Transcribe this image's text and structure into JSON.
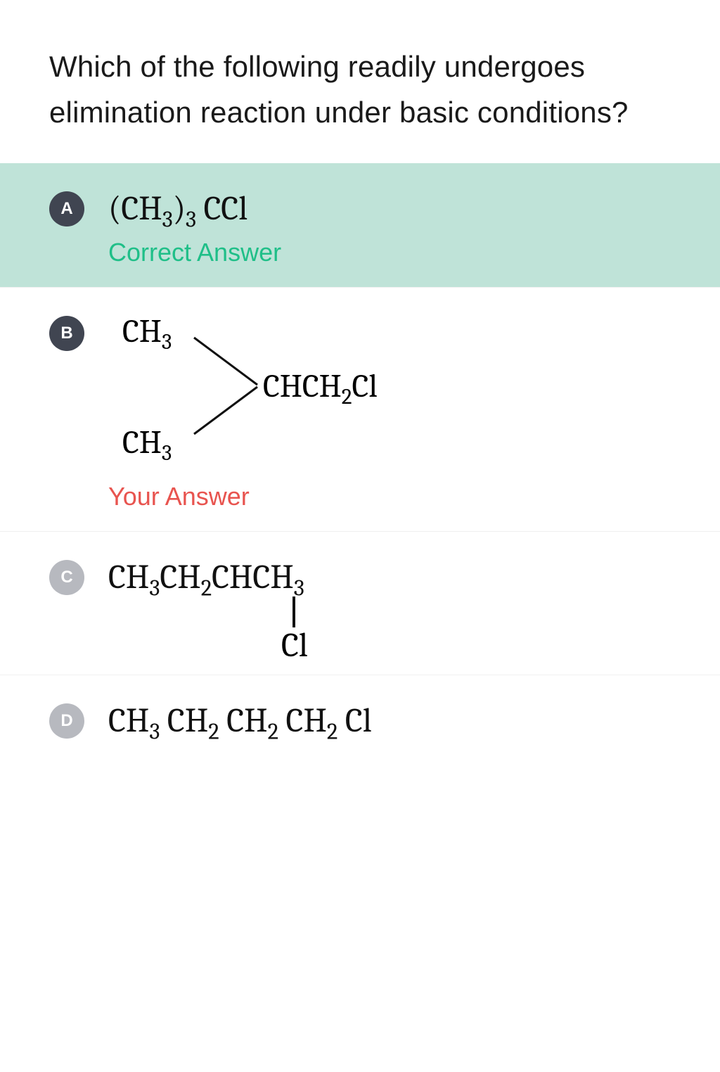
{
  "question": {
    "text": "Which of the following readily undergoes elimination reaction under basic conditions?",
    "font_size_pt": 32,
    "color": "#1a1a1a"
  },
  "status_labels": {
    "correct": "Correct Answer",
    "your": "Your Answer"
  },
  "badge_colors": {
    "selected": "#404551",
    "muted": "#b7b9bf"
  },
  "options": {
    "A": {
      "letter": "A",
      "formula_html": "(CH<sub>3</sub>)<sub>3</sub> CCl",
      "is_correct": true,
      "is_user_answer": false,
      "badge_color": "#404551",
      "row_bg": "#bfe3d8"
    },
    "B": {
      "letter": "B",
      "ch3_top": "CH<sub>3</sub>",
      "ch3_bot": "CH<sub>3</sub>",
      "tail": "CHCH<sub>2</sub>Cl",
      "is_correct": false,
      "is_user_answer": true,
      "badge_color": "#404551",
      "row_bg": "#ffffff",
      "bond_stroke": "#111111",
      "bond_width": 3
    },
    "C": {
      "letter": "C",
      "main": "CH<sub>3</sub>CH<sub>2</sub>CHCH<sub>3</sub>",
      "cl": "Cl",
      "is_correct": false,
      "is_user_answer": false,
      "badge_color": "#b7b9bf",
      "row_bg": "#ffffff"
    },
    "D": {
      "letter": "D",
      "formula_html": "CH<sub>3</sub> CH<sub>2</sub> CH<sub>2</sub> CH<sub>2</sub> Cl",
      "is_correct": false,
      "is_user_answer": false,
      "badge_color": "#b7b9bf",
      "row_bg": "#ffffff"
    }
  },
  "colors": {
    "correct_text": "#1fbf88",
    "your_text": "#e8544f",
    "divider": "#f0f0f0",
    "page_bg": "#ffffff"
  }
}
